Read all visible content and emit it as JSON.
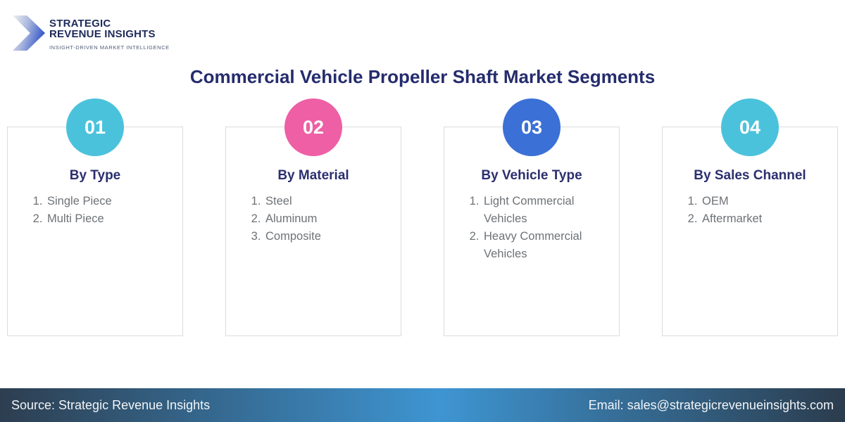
{
  "logo": {
    "name_line1": "STRATEGIC",
    "name_line2": "REVENUE INSIGHTS",
    "tagline": "INSIGHT-DRIVEN MARKET INTELLIGENCE"
  },
  "title": "Commercial Vehicle Propeller Shaft Market Segments",
  "segments": [
    {
      "number": "01",
      "heading": "By Type",
      "circle_color": "#4bc2dc",
      "items": [
        "Single Piece",
        "Multi Piece"
      ]
    },
    {
      "number": "02",
      "heading": "By Material",
      "circle_color": "#ee5fa5",
      "items": [
        "Steel",
        "Aluminum",
        "Composite"
      ]
    },
    {
      "number": "03",
      "heading": "By Vehicle Type",
      "circle_color": "#3b70d6",
      "items": [
        "Light Commercial Vehicles",
        "Heavy Commercial Vehicles"
      ]
    },
    {
      "number": "04",
      "heading": "By Sales Channel",
      "circle_color": "#4bc2dc",
      "items": [
        "OEM",
        "Aftermarket"
      ]
    }
  ],
  "footer": {
    "source": "Source: Strategic Revenue Insights",
    "email": "Email: sales@strategicrevenueinsights.com"
  },
  "colors": {
    "title_navy": "#252c6d",
    "heading_navy": "#2b2f6e",
    "list_gray": "#6e7276",
    "card_border": "#dcdcdc",
    "footer_dark": "#2d3e50",
    "footer_blue": "#3e95d2"
  }
}
